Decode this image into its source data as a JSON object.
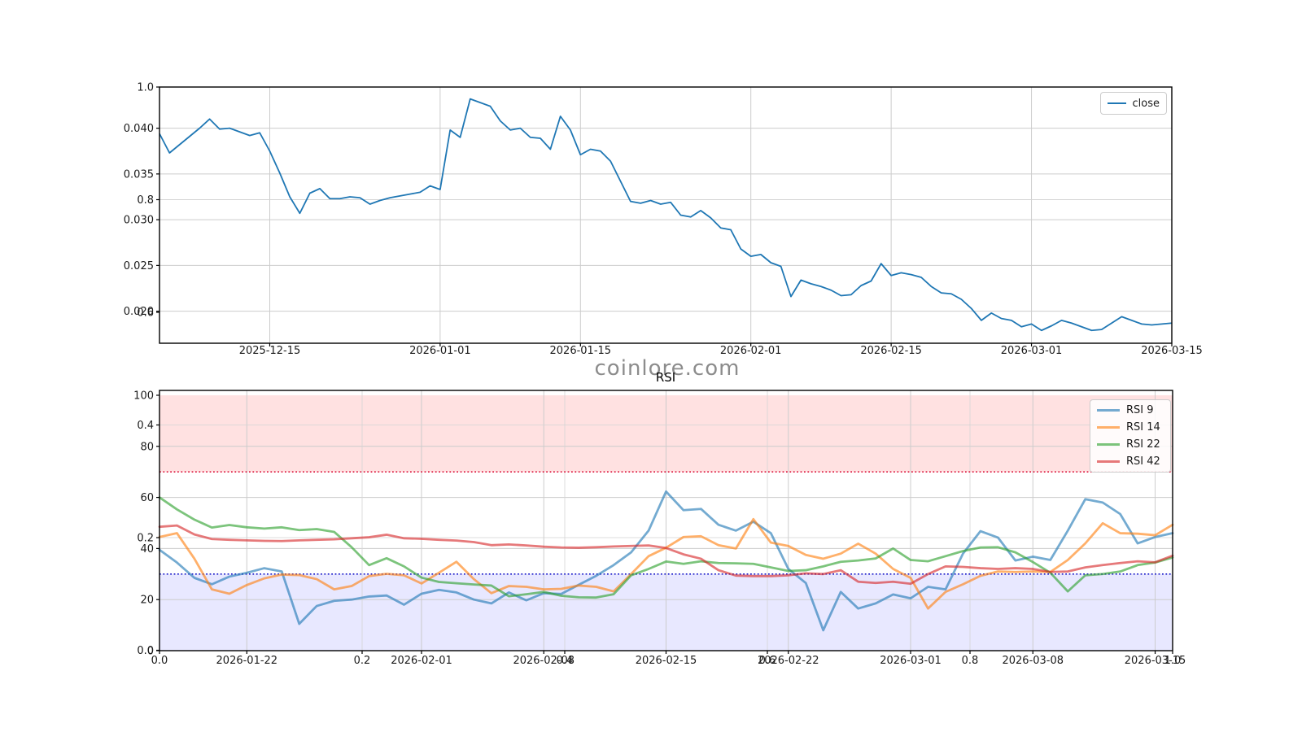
{
  "watermark": "coinlore.com",
  "accent_colors": {
    "close_line": "#1f77b4",
    "rsi9": "#1f77b4",
    "rsi14": "#ff7f0e",
    "rsi22": "#2ca02c",
    "rsi42": "#d62728",
    "overbought_band": "rgba(255,70,70,0.16)",
    "oversold_band": "rgba(80,80,255,0.13)",
    "overbought_line": "#dc143c",
    "oversold_line": "#1414c8",
    "grid": "#cccccc",
    "overlay_grid": "#d4d4d4"
  },
  "chart_data": [
    {
      "type": "line",
      "title": "",
      "legend_position": "upper right",
      "x_tick_labels": [
        "2025-12-15",
        "2026-01-01",
        "2026-01-15",
        "2026-02-01",
        "2026-02-15",
        "2026-03-01",
        "2026-03-15"
      ],
      "x_tick_indices": [
        11,
        28,
        42,
        59,
        73,
        87,
        101
      ],
      "y_tick_labels": [
        "0.040",
        "0.035",
        "0.030",
        "0.025",
        "0.020"
      ],
      "y_ticks": [
        0.04,
        0.035,
        0.03,
        0.025,
        0.02
      ],
      "ylim": [
        0.0165,
        0.0445
      ],
      "grid": true,
      "series": [
        {
          "name": "close",
          "color": "#1f77b4",
          "values": [
            0.0394,
            0.0373,
            0.0382,
            0.0391,
            0.04,
            0.041,
            0.0399,
            0.04,
            0.0396,
            0.0392,
            0.0395,
            0.0375,
            0.0351,
            0.0325,
            0.0307,
            0.0329,
            0.0334,
            0.0323,
            0.0323,
            0.0325,
            0.0324,
            0.0317,
            0.0321,
            0.0324,
            0.0326,
            0.0328,
            0.033,
            0.0337,
            0.0333,
            0.0398,
            0.039,
            0.0432,
            0.0428,
            0.0424,
            0.0408,
            0.0398,
            0.04,
            0.039,
            0.0389,
            0.0377,
            0.0413,
            0.0398,
            0.0371,
            0.0377,
            0.0375,
            0.0364,
            0.0342,
            0.032,
            0.0318,
            0.0321,
            0.0317,
            0.0319,
            0.0305,
            0.0303,
            0.031,
            0.0302,
            0.0291,
            0.0289,
            0.0268,
            0.026,
            0.0262,
            0.0253,
            0.0249,
            0.0216,
            0.0234,
            0.023,
            0.0227,
            0.0223,
            0.0217,
            0.0218,
            0.0228,
            0.0233,
            0.0252,
            0.0239,
            0.0242,
            0.024,
            0.0237,
            0.0227,
            0.022,
            0.0219,
            0.0213,
            0.0203,
            0.019,
            0.0198,
            0.0192,
            0.019,
            0.0183,
            0.0186,
            0.0179,
            0.0184,
            0.019,
            0.0187,
            0.0183,
            0.0179,
            0.018,
            0.0187,
            0.0194,
            0.019,
            0.0186,
            0.0185,
            0.0186,
            0.0187
          ]
        }
      ]
    },
    {
      "type": "line",
      "title": "RSI",
      "legend_position": "upper right",
      "x_tick_labels": [
        "2026-01-22",
        "2026-02-01",
        "2026-02-08",
        "2026-02-15",
        "2026-02-22",
        "2026-03-01",
        "2026-03-08",
        "2026-03-15"
      ],
      "x_tick_indices": [
        5,
        15,
        22,
        29,
        36,
        43,
        50,
        57
      ],
      "y_tick_labels": [
        "100",
        "80",
        "60",
        "40",
        "20",
        "0"
      ],
      "y_ticks": [
        100,
        80,
        60,
        40,
        20,
        0
      ],
      "ylim": [
        0,
        101.9
      ],
      "grid": true,
      "bands": [
        {
          "from": 70,
          "to": 100,
          "color": "rgba(255,70,70,0.16)"
        },
        {
          "from": 0,
          "to": 30,
          "color": "rgba(80,80,255,0.13)"
        }
      ],
      "ref_lines": [
        {
          "value": 70,
          "color": "#dc143c"
        },
        {
          "value": 30,
          "color": "#1414c8"
        }
      ],
      "series": [
        {
          "name": "RSI 9",
          "color": "#1f77b4",
          "values": [
            39.5,
            34.5,
            28.5,
            26,
            29,
            30.5,
            32.3,
            31,
            10.5,
            17.5,
            19.5,
            20,
            21.2,
            21.6,
            18,
            22.3,
            23.8,
            22.8,
            20,
            18.5,
            22.8,
            19.7,
            22.5,
            22.2,
            25.8,
            29.3,
            33.5,
            38.5,
            47,
            62.3,
            55,
            55.5,
            49.3,
            47,
            50.5,
            46,
            32,
            26.5,
            8,
            23,
            16.5,
            18.5,
            22,
            20.5,
            25,
            24,
            38,
            46.8,
            44.3,
            35.3,
            36.8,
            35.5,
            47,
            59.3,
            58,
            53.5,
            42,
            44.5,
            46
          ]
        },
        {
          "name": "RSI 14",
          "color": "#ff7f0e",
          "values": [
            44.5,
            46,
            36,
            24,
            22.3,
            25.7,
            28.3,
            29.8,
            29.6,
            28,
            24,
            25.3,
            29.2,
            30.1,
            29.5,
            26.3,
            30.5,
            34.8,
            28,
            22.5,
            25.3,
            25,
            24,
            24.2,
            25.5,
            25,
            23.2,
            30,
            37,
            40.3,
            44.5,
            44.8,
            41.3,
            40,
            51.5,
            42.3,
            41,
            37.5,
            36,
            38,
            41.9,
            38,
            32,
            28.5,
            16.5,
            23,
            26,
            29.3,
            31,
            30.8,
            31,
            30.8,
            35.5,
            42,
            49.9,
            46,
            45.8,
            45.2,
            49.3
          ]
        },
        {
          "name": "RSI 22",
          "color": "#2ca02c",
          "values": [
            60,
            55.3,
            51.3,
            48.2,
            49.2,
            48.3,
            47.8,
            48.3,
            47.2,
            47.6,
            46.5,
            40.5,
            33.5,
            36.2,
            33,
            28.6,
            26.9,
            26.4,
            25.9,
            25.5,
            21.3,
            22.1,
            23,
            21.5,
            20.9,
            20.8,
            22.1,
            29.5,
            32,
            34.9,
            34,
            35,
            34.3,
            34.2,
            34,
            32.6,
            31.2,
            31.5,
            33,
            34.8,
            35.3,
            36.1,
            40,
            35.5,
            35,
            37,
            39,
            40.4,
            40.5,
            38.5,
            34.7,
            30.5,
            23.2,
            29.5,
            30,
            31,
            33.5,
            34.5,
            36.5
          ]
        },
        {
          "name": "RSI 42",
          "color": "#d62728",
          "values": [
            48.5,
            49,
            45.5,
            43.7,
            43.4,
            43.2,
            43,
            42.9,
            43.2,
            43.4,
            43.6,
            44,
            44.4,
            45.4,
            44,
            43.8,
            43.4,
            43.1,
            42.5,
            41.3,
            41.6,
            41.2,
            40.7,
            40.4,
            40.3,
            40.5,
            40.8,
            41,
            41.2,
            40.2,
            37.7,
            36,
            31.5,
            29.4,
            29.2,
            29.2,
            29.5,
            30.3,
            30,
            31.5,
            27,
            26.5,
            27,
            26.2,
            30,
            33,
            32.8,
            32.3,
            32,
            32.3,
            32,
            30.8,
            31,
            32.6,
            33.5,
            34.3,
            35,
            34.6,
            37.2
          ]
        }
      ]
    }
  ],
  "overlay_axis": {
    "x_tick_labels": [
      "0.0",
      "0.2",
      "0.4",
      "0.6",
      "0.8",
      "1.0"
    ],
    "x_ticks": [
      0.0,
      0.2,
      0.4,
      0.6,
      0.8,
      1.0
    ],
    "top_y_tick_labels": [
      "1.0",
      "0.8",
      "0.6"
    ],
    "top_y_ticks": [
      1.0,
      0.8,
      0.6
    ],
    "bottom_y_tick_labels": [
      "0.4",
      "0.2",
      "0.0"
    ],
    "bottom_y_ticks": [
      0.4,
      0.2,
      0.0
    ]
  }
}
